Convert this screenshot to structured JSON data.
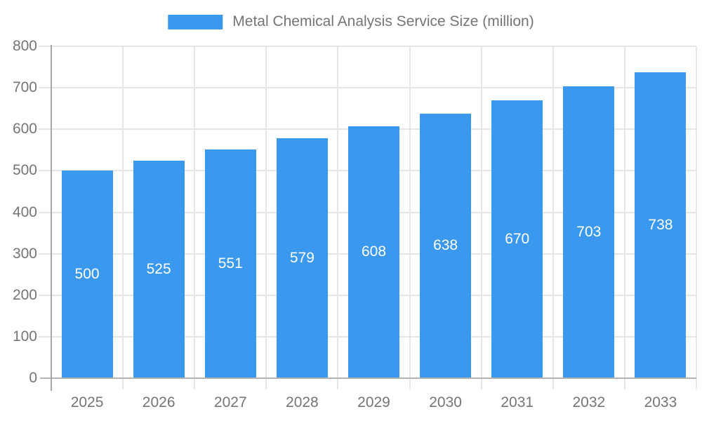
{
  "chart_data": {
    "type": "bar",
    "title": "Metal Chemical Analysis Service Size (million)",
    "categories": [
      "2025",
      "2026",
      "2027",
      "2028",
      "2029",
      "2030",
      "2031",
      "2032",
      "2033"
    ],
    "values": [
      500,
      525,
      551,
      579,
      608,
      638,
      670,
      703,
      738
    ],
    "series": [
      {
        "name": "Metal Chemical Analysis Service Size (million)",
        "values": [
          500,
          525,
          551,
          579,
          608,
          638,
          670,
          703,
          738
        ]
      }
    ],
    "xlabel": "",
    "ylabel": "",
    "ylim": [
      0,
      800
    ],
    "yticks": [
      0,
      100,
      200,
      300,
      400,
      500,
      600,
      700,
      800
    ],
    "grid": true,
    "legend_position": "top-center",
    "bar_labels_visible": true,
    "colors": {
      "bar": "#3A99EE",
      "bar_label": "#FFFFFF",
      "axis_text": "#757575",
      "grid_line": "#E6E6E6",
      "x_axis_line": "#B3B3B3",
      "y_axis_line": "#A6A6A6",
      "background": "#FFFFFF"
    }
  }
}
